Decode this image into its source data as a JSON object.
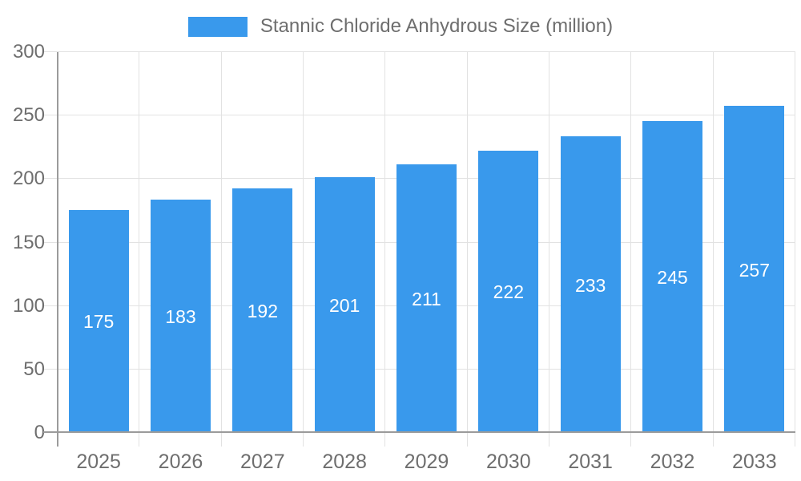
{
  "chart_data": {
    "type": "bar",
    "title": "",
    "legend": {
      "label": "Stannic Chloride Anhydrous Size (million)",
      "position": "top"
    },
    "categories": [
      "2025",
      "2026",
      "2027",
      "2028",
      "2029",
      "2030",
      "2031",
      "2032",
      "2033"
    ],
    "values": [
      175,
      183,
      192,
      201,
      211,
      222,
      233,
      245,
      257
    ],
    "xlabel": "",
    "ylabel": "",
    "ylim": [
      0,
      300
    ],
    "yticks": [
      0,
      50,
      100,
      150,
      200,
      250,
      300
    ],
    "grid": true,
    "bar_labels_shown": true,
    "colors": {
      "bar": "#3999EC",
      "bar_label": "#FFFFFF",
      "axis_text": "#6E6E6E",
      "grid_line": "#E2E2E2",
      "axis_line": "#9B9B9B",
      "background": "#FFFFFF"
    }
  }
}
